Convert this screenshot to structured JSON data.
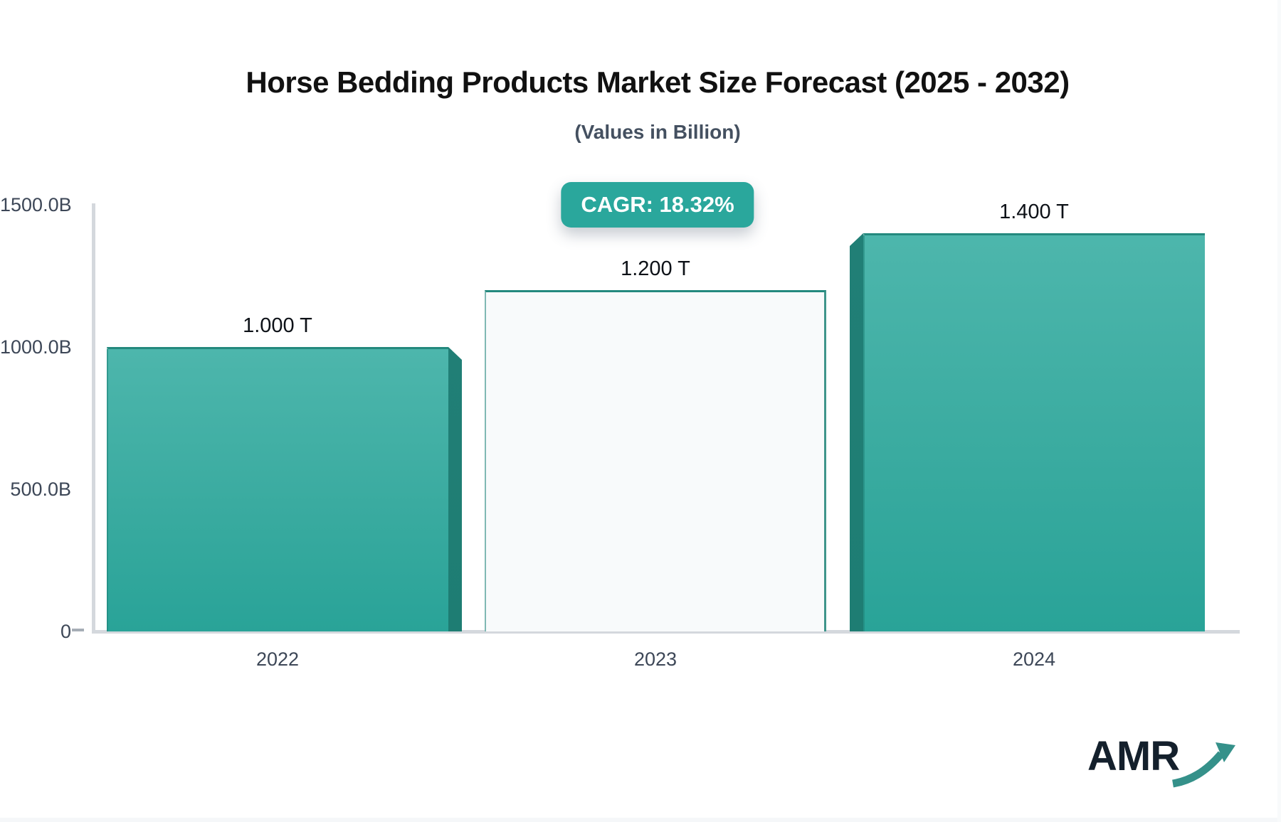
{
  "page": {
    "title": "Horse Bedding Products Market Size Forecast (2025 - 2032)",
    "subtitle": "(Values in Billion)",
    "cagr_badge": "CAGR: 18.32%",
    "logo_text": "AMR"
  },
  "colors": {
    "accent_teal": "#2aa79c",
    "bar_gradient_top": "#4db6ac",
    "bar_gradient_bottom": "#29a398",
    "bar_top_edge": "#24897e",
    "bar_3d_side": "#1e7d73",
    "axis_line": "#d4d8dd",
    "axis_text": "#3d4757",
    "title_text": "#111111",
    "logo_arrow": "#35918a"
  },
  "chart_data": {
    "type": "bar",
    "title": "Horse Bedding Products Market Size Forecast (2025 - 2032)",
    "subtitle": "(Values in Billion)",
    "annotation": "CAGR: 18.32%",
    "categories": [
      "2022",
      "2023",
      "2024"
    ],
    "values_billion": [
      1000,
      1200,
      1400
    ],
    "value_labels": [
      "1.000 T",
      "1.200 T",
      "1.400 T"
    ],
    "y_ticks": [
      {
        "value": 1500,
        "label": "1500.0B"
      },
      {
        "value": 1000,
        "label": "1000.0B"
      },
      {
        "value": 500,
        "label": "500.0B"
      },
      {
        "value": 0,
        "label": "0"
      }
    ],
    "ylim": [
      0,
      1500
    ],
    "xlabel": "",
    "ylabel": "",
    "grid": false,
    "legend": false
  }
}
